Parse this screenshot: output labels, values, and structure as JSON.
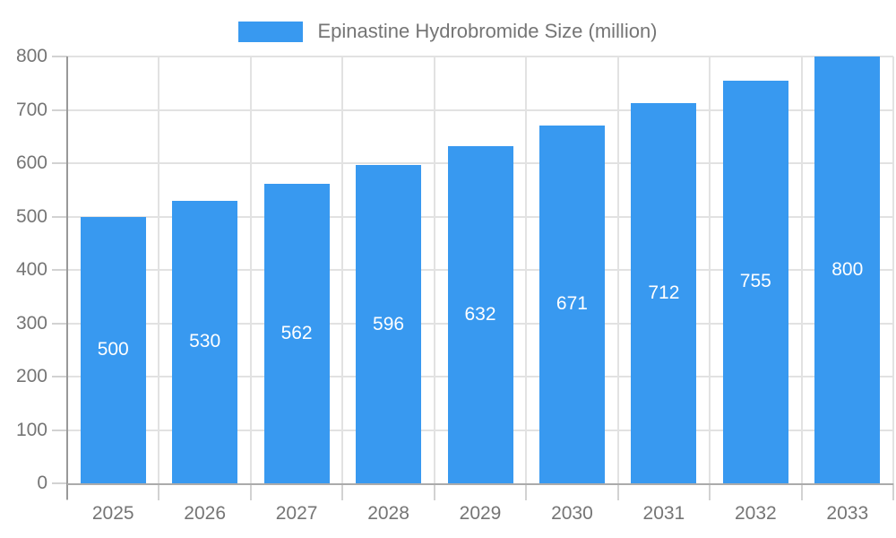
{
  "legend": {
    "label": "Epinastine Hydrobromide Size (million)"
  },
  "chart_data": {
    "type": "bar",
    "title": "Epinastine Hydrobromide Size (million)",
    "series_name": "Epinastine Hydrobromide Size (million)",
    "categories": [
      "2025",
      "2026",
      "2027",
      "2028",
      "2029",
      "2030",
      "2031",
      "2032",
      "2033"
    ],
    "values": [
      500,
      530,
      562,
      596,
      632,
      671,
      712,
      755,
      800
    ],
    "xlabel": "",
    "ylabel": "",
    "ylim": [
      0,
      800
    ],
    "ytick_step": 100,
    "ytick_labels": [
      "0",
      "100",
      "200",
      "300",
      "400",
      "500",
      "600",
      "700",
      "800"
    ],
    "grid": true,
    "legend_position": "top",
    "bar_value_labels_inside": true,
    "colors": {
      "bar": "#3899F0",
      "bar_label": "#FFFFFF",
      "axis_text": "#757575",
      "gridline": "#E2E2E2",
      "tick": "#D2D2D2",
      "y_axis_line": "#999999",
      "baseline": "#ABABAB",
      "background": "#FFFFFF"
    }
  }
}
